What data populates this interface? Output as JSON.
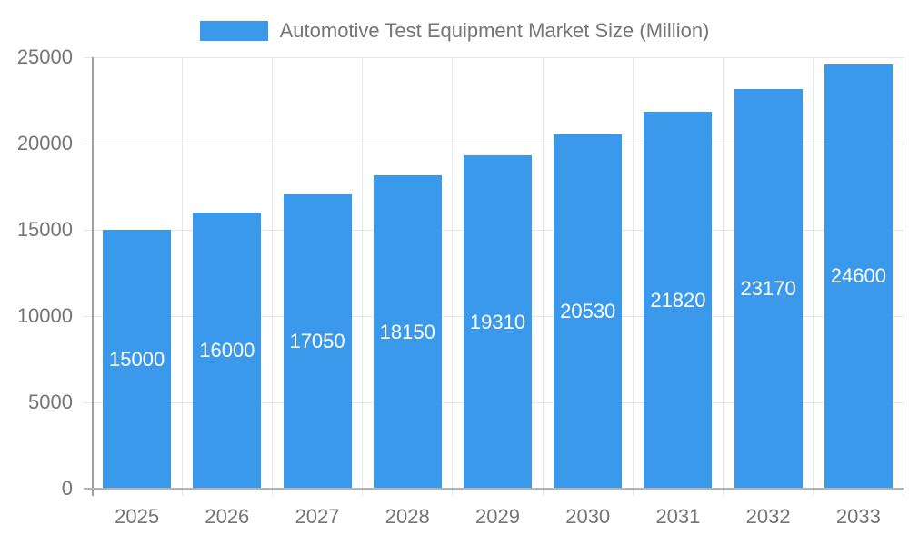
{
  "chart_data": {
    "type": "bar",
    "title": "Automotive Test Equipment Market Size (Million)",
    "legend": {
      "label": "Automotive Test Equipment Market Size (Million)",
      "position": "top"
    },
    "categories": [
      "2025",
      "2026",
      "2027",
      "2028",
      "2029",
      "2030",
      "2031",
      "2032",
      "2033"
    ],
    "values": [
      15000,
      16000,
      17050,
      18150,
      19310,
      20530,
      21820,
      23170,
      24600
    ],
    "bar_labels": [
      "15000",
      "16000",
      "17050",
      "18150",
      "19310",
      "20530",
      "21820",
      "23170",
      "24600"
    ],
    "xlabel": "",
    "ylabel": "",
    "ylim": [
      0,
      25000
    ],
    "y_ticks": [
      0,
      5000,
      10000,
      15000,
      20000,
      25000
    ],
    "grid": true,
    "colors": {
      "bar": "#3b99ec",
      "bar_value_text": "#ffffff",
      "axis_text": "#757575",
      "legend_text": "#757575",
      "gridline": "#e6e6e6",
      "y_axis_line": "#9e9e9e",
      "x_axis_line": "#b3b3b3",
      "background": "#ffffff"
    }
  }
}
